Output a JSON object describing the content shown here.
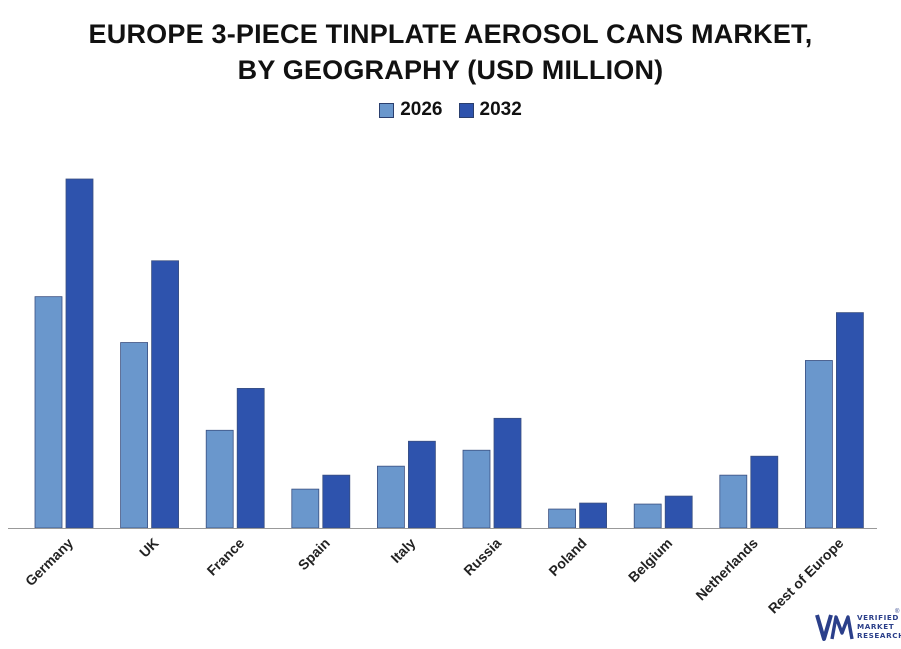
{
  "title_line1": "EUROPE 3-PIECE TINPLATE AEROSOL CANS MARKET,",
  "title_line2": "BY GEOGRAPHY (USD MILLION)",
  "colors": {
    "series_2026": "#6a97cc",
    "series_2032": "#2e53ad",
    "axis": "#999999",
    "logo": "#2b3f8a"
  },
  "logo": {
    "line1": "VERIFIED",
    "line2": "MARKET",
    "line3": "RESEARCH",
    "reg": "®"
  },
  "chart_data": {
    "type": "bar",
    "categories": [
      "Germany",
      "UK",
      "France",
      "Spain",
      "Italy",
      "Russia",
      "Poland",
      "Belgium",
      "Netherlands",
      "Rest of Europe"
    ],
    "series": [
      {
        "name": "2026",
        "values": [
          232,
          186,
          98,
          39,
          62,
          78,
          19,
          24,
          53,
          168
        ]
      },
      {
        "name": "2032",
        "values": [
          350,
          268,
          140,
          53,
          87,
          110,
          25,
          32,
          72,
          216
        ]
      }
    ],
    "ylim": [
      0,
      350
    ],
    "xlabel": "",
    "ylabel": "",
    "legend_position": "top",
    "grid": false
  }
}
